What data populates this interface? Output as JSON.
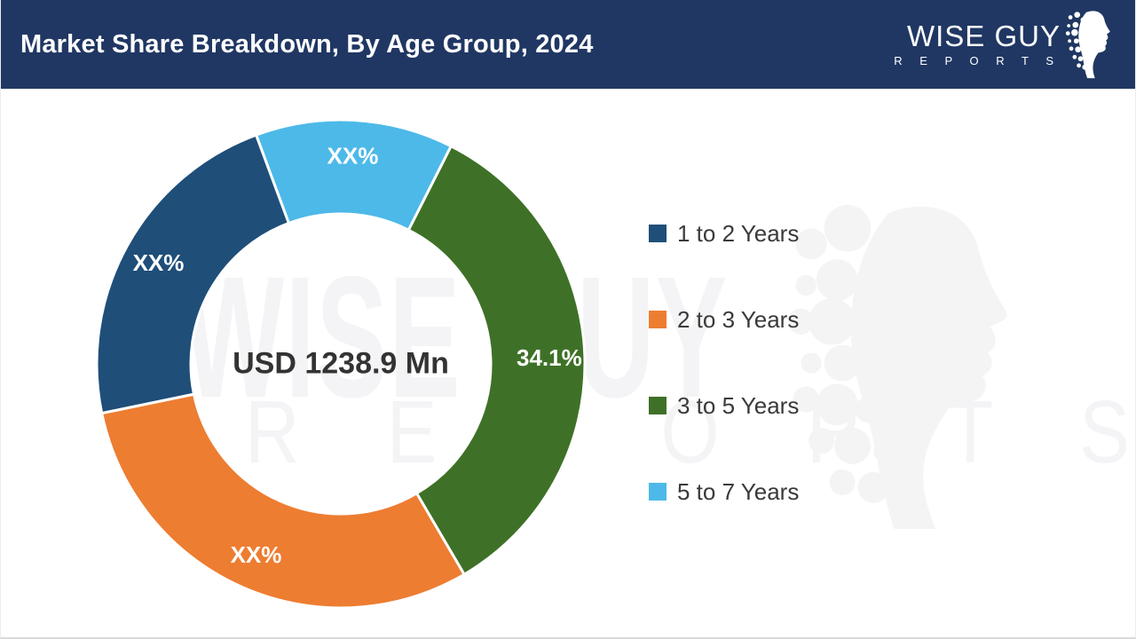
{
  "header": {
    "title": "Market Share Breakdown, By Age Group, 2024",
    "background_color": "#203763",
    "logo": {
      "line1": "WISE GUY",
      "line2": "R E P O R T S"
    }
  },
  "watermark": {
    "line1": "WISE GUY",
    "line2": "R E P O R T S"
  },
  "chart_data": {
    "type": "pie",
    "subtype": "donut",
    "title": "Market Share Breakdown, By Age Group, 2024",
    "center_label": "USD 1238.9 Mn",
    "start_angle_deg": -20.3,
    "slices": [
      {
        "name": "5 to 7 Years",
        "value_pct": 13.1,
        "display_label": "XX%",
        "color": "#4DB9E8"
      },
      {
        "name": "3 to 5 Years",
        "value_pct": 34.1,
        "display_label": "34.1%",
        "color": "#3E7127"
      },
      {
        "name": "2 to 3 Years",
        "value_pct": 30.2,
        "display_label": "XX%",
        "color": "#ED7D31"
      },
      {
        "name": "1 to 2 Years",
        "value_pct": 22.6,
        "display_label": "XX%",
        "color": "#1F4E79"
      }
    ],
    "legend": [
      {
        "label": "1 to 2 Years",
        "color": "#1F4E79"
      },
      {
        "label": "2 to 3 Years",
        "color": "#ED7D31"
      },
      {
        "label": "3 to 5 Years",
        "color": "#3E7127"
      },
      {
        "label": "5 to 7 Years",
        "color": "#4DB9E8"
      }
    ],
    "legend_position": "right",
    "slice_label_color": "#ffffff"
  }
}
